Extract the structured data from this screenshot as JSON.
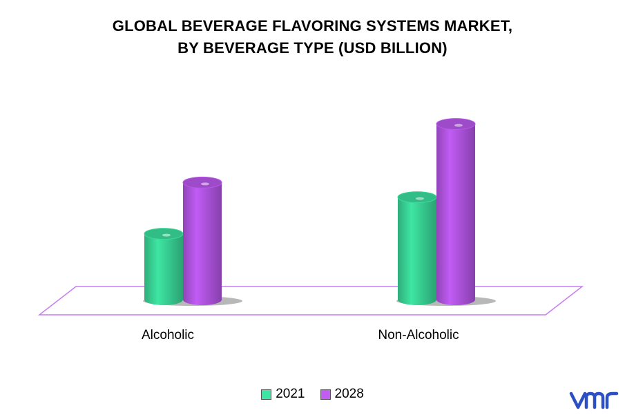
{
  "chart_data": {
    "type": "bar",
    "title_lines": [
      "GLOBAL BEVERAGE FLAVORING SYSTEMS MARKET,",
      "BY BEVERAGE TYPE (USD BILLION)"
    ],
    "categories": [
      "Alcoholic",
      "Non-Alcoholic"
    ],
    "series": [
      {
        "name": "2021",
        "values": [
          1.8,
          2.8
        ],
        "color": "#3ee6a3"
      },
      {
        "name": "2028",
        "values": [
          3.2,
          4.8
        ],
        "color": "#c15cf5"
      }
    ],
    "xlabel": "",
    "ylabel": "",
    "ylim": [
      0,
      5.5
    ],
    "grid": false,
    "legend_position": "bottom"
  },
  "logo": {
    "text": "vmr",
    "color": "#2d4fc4"
  }
}
